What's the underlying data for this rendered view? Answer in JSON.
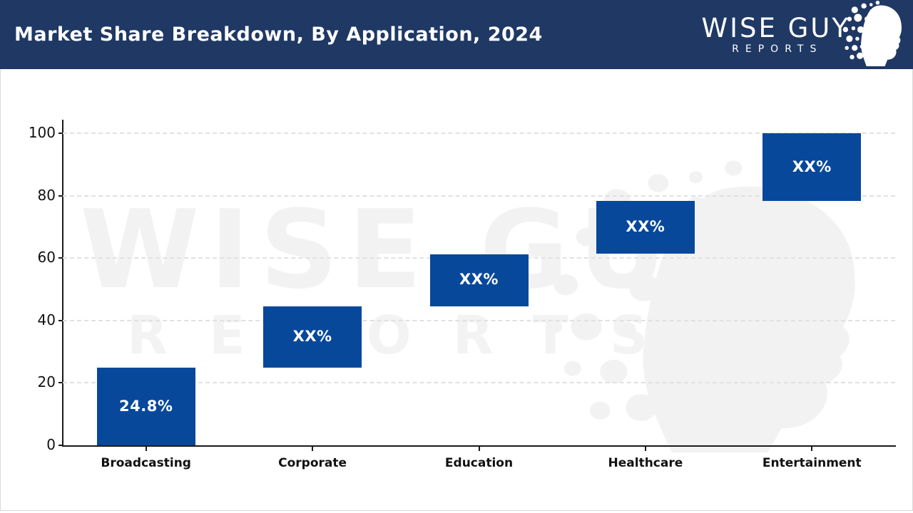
{
  "header": {
    "title": "Market Share Breakdown, By Application, 2024",
    "bg_color": "#1f3864",
    "logo": {
      "line1": "WISE GUY",
      "line2": "REPORTS"
    }
  },
  "watermark": {
    "line1": "WISE GUY",
    "line2": "REPORTS"
  },
  "chart_data": {
    "type": "bar",
    "subtype": "waterfall-floating-bars",
    "title": "Market Share Breakdown, By Application, 2024",
    "categories": [
      "Broadcasting",
      "Corporate",
      "Education",
      "Healthcare",
      "Entertainment"
    ],
    "series": [
      {
        "name": "Market Share (%)",
        "segments": [
          [
            0,
            24.8
          ],
          [
            24.8,
            44.5
          ],
          [
            44.5,
            61.3
          ],
          [
            61.3,
            78.3
          ],
          [
            78.3,
            100
          ]
        ]
      }
    ],
    "bar_labels": [
      "24.8%",
      "XX%",
      "XX%",
      "XX%",
      "XX%"
    ],
    "xlabel": "",
    "ylabel": "",
    "ylim": [
      0,
      100
    ],
    "yticks": [
      0,
      20,
      40,
      60,
      80,
      100
    ],
    "grid": "horizontal-dashed",
    "legend": "none",
    "bar_color": "#07489b",
    "bar_label_color": "#ffffff"
  }
}
